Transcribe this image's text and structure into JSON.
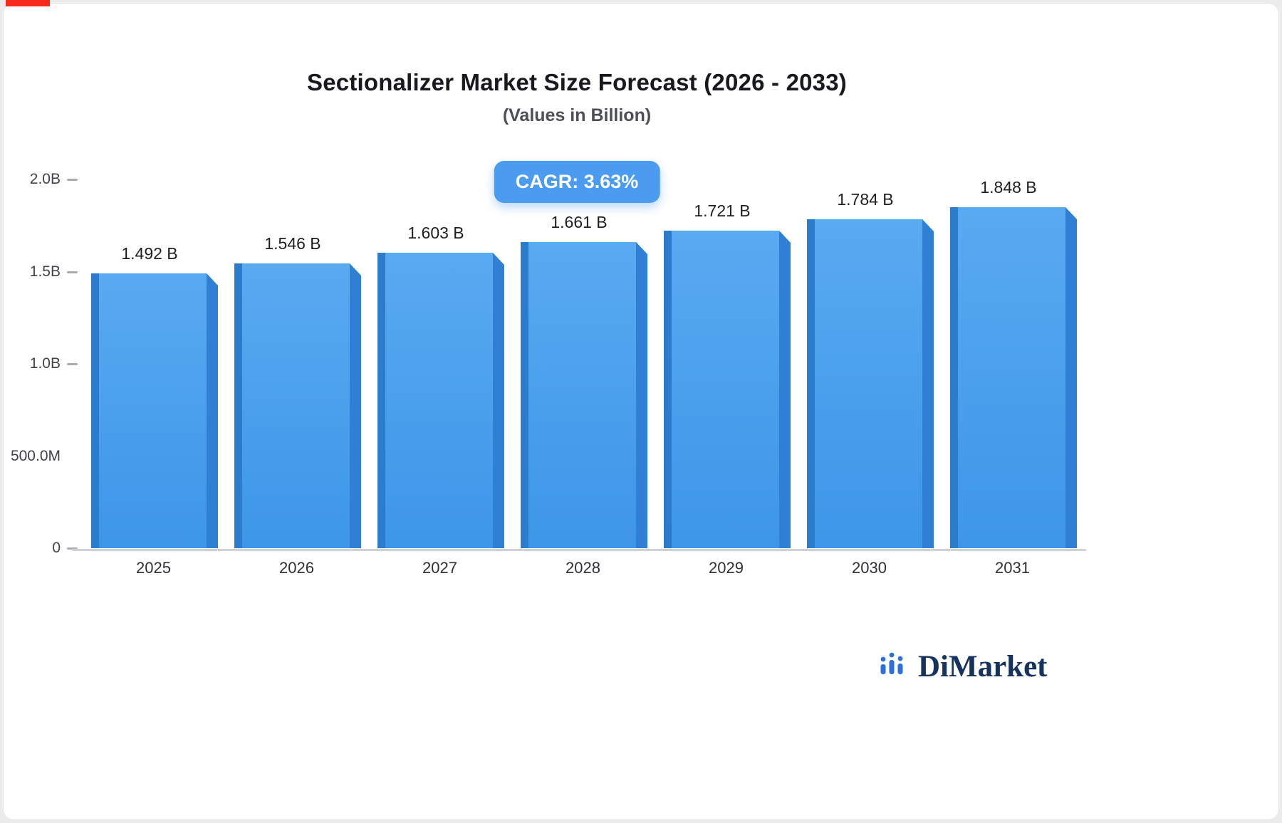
{
  "header": {
    "title": "Sectionalizer Market Size Forecast (2026 - 2033)",
    "subtitle": "(Values in Billion)"
  },
  "badge": {
    "label": "CAGR: 3.63%"
  },
  "chart_data": {
    "type": "bar",
    "title": "Sectionalizer Market Size Forecast (2026 - 2033)",
    "subtitle": "(Values in Billion)",
    "units": "Billion USD",
    "cagr": "3.63%",
    "categories": [
      "2025",
      "2026",
      "2027",
      "2028",
      "2029",
      "2030",
      "2031"
    ],
    "values": [
      1.492,
      1.546,
      1.603,
      1.661,
      1.721,
      1.784,
      1.848
    ],
    "value_labels": [
      "1.492 B",
      "1.546 B",
      "1.603 B",
      "1.661 B",
      "1.721 B",
      "1.784 B",
      "1.848 B"
    ],
    "xlabel": "",
    "ylabel": "",
    "ylim": [
      0,
      2.0
    ],
    "yticks": [
      {
        "value": 2.0,
        "label": "2.0B",
        "dash": true
      },
      {
        "value": 1.5,
        "label": "1.5B",
        "dash": true
      },
      {
        "value": 1.0,
        "label": "1.0B",
        "dash": true
      },
      {
        "value": 0.5,
        "label": "500.0M",
        "dash": false
      },
      {
        "value": 0.0,
        "label": "0",
        "dash": true
      }
    ],
    "grid": false,
    "legend": "none"
  },
  "logo": {
    "text": "DiMarket"
  },
  "colors": {
    "bar_top": "#58aaf1",
    "bar_bottom": "#3e96e8",
    "bar_side": "#2f80d4",
    "bar_edge": "#2c7ccd",
    "badge_bg": "#4b9cf0",
    "logo_blue": "#2e6fe0",
    "logo_navy": "#16325e"
  }
}
